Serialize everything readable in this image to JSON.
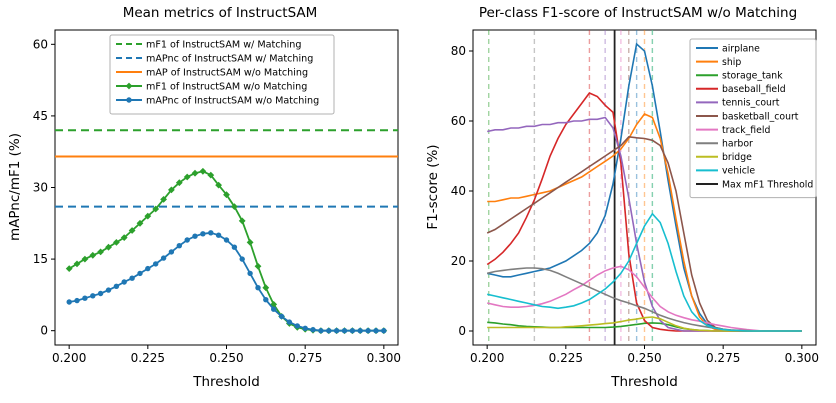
{
  "figure": {
    "background": "#ffffff"
  },
  "chart_data": [
    {
      "type": "line",
      "title": "Mean metrics of InstructSAM",
      "xlabel": "Threshold",
      "ylabel": "mAPnc/mF1 (%)",
      "xlim": [
        0.1955,
        0.3045
      ],
      "ylim": [
        -3,
        63
      ],
      "xticks": [
        0.2,
        0.225,
        0.25,
        0.275,
        0.3
      ],
      "xtick_labels": [
        "0.200",
        "0.225",
        "0.250",
        "0.275",
        "0.300"
      ],
      "yticks": [
        0,
        15,
        30,
        45,
        60
      ],
      "grid": false,
      "legend_position": "upper center",
      "hlines": [
        {
          "label": "mF1 of InstructSAM w/ Matching",
          "y": 42.0,
          "color": "#2ca02c",
          "dash": true
        },
        {
          "label": "mAPnc of InstructSAM w/ Matching",
          "y": 26.0,
          "color": "#1f77b4",
          "dash": true
        },
        {
          "label": "mAP of InstructSAM w/o Matching",
          "y": 36.5,
          "color": "#ff7f0e",
          "dash": false
        }
      ],
      "x": [
        0.2,
        0.2025,
        0.205,
        0.2075,
        0.21,
        0.2125,
        0.215,
        0.2175,
        0.22,
        0.2225,
        0.225,
        0.2275,
        0.23,
        0.2325,
        0.235,
        0.2375,
        0.24,
        0.2425,
        0.245,
        0.2475,
        0.25,
        0.2525,
        0.255,
        0.2575,
        0.26,
        0.2625,
        0.265,
        0.2675,
        0.27,
        0.2725,
        0.275,
        0.2775,
        0.28,
        0.2825,
        0.285,
        0.2875,
        0.29,
        0.2925,
        0.295,
        0.2975,
        0.3
      ],
      "series": [
        {
          "name": "mF1 of InstructSAM w/o Matching",
          "color": "#2ca02c",
          "marker": "diamond",
          "values": [
            13,
            14,
            15,
            15.8,
            16.5,
            17.5,
            18.5,
            19.5,
            21,
            22.5,
            24,
            25.5,
            27.5,
            29.5,
            31,
            32.2,
            33,
            33.4,
            32.6,
            30.5,
            28.5,
            26,
            23,
            18.5,
            13.5,
            9,
            5.5,
            3,
            1.5,
            0.7,
            0.3,
            0.1,
            0,
            0,
            0,
            0,
            0,
            0,
            0,
            0,
            0
          ]
        },
        {
          "name": "mAPnc of InstructSAM w/o Matching",
          "color": "#1f77b4",
          "marker": "circle",
          "values": [
            6,
            6.3,
            6.8,
            7.3,
            7.8,
            8.5,
            9.3,
            10.2,
            11,
            12,
            13,
            14,
            15.2,
            16.5,
            17.8,
            19,
            19.8,
            20.3,
            20.5,
            20,
            19,
            17.5,
            15,
            12,
            9,
            6.5,
            4.5,
            3,
            1.8,
            1,
            0.5,
            0.2,
            0,
            0,
            0,
            0,
            0,
            0,
            0,
            0,
            0
          ]
        }
      ]
    },
    {
      "type": "line",
      "title": "Per-class F1-score of InstructSAM w/o Matching",
      "xlabel": "Threshold",
      "ylabel": "F1-score (%)",
      "xlim": [
        0.1955,
        0.3045
      ],
      "ylim": [
        -4,
        86
      ],
      "xticks": [
        0.2,
        0.225,
        0.25,
        0.275,
        0.3
      ],
      "xtick_labels": [
        "0.200",
        "0.225",
        "0.250",
        "0.275",
        "0.300"
      ],
      "yticks": [
        0,
        20,
        40,
        60,
        80
      ],
      "grid": false,
      "legend_position": "upper right",
      "vlines": [
        {
          "label": "Max mF1 Threshold",
          "x": 0.2405,
          "color": "#222222"
        }
      ],
      "x": [
        0.2,
        0.2025,
        0.205,
        0.2075,
        0.21,
        0.2125,
        0.215,
        0.2175,
        0.22,
        0.2225,
        0.225,
        0.2275,
        0.23,
        0.2325,
        0.235,
        0.2375,
        0.24,
        0.2425,
        0.245,
        0.2475,
        0.25,
        0.2525,
        0.255,
        0.2575,
        0.26,
        0.2625,
        0.265,
        0.2675,
        0.27,
        0.2725,
        0.275,
        0.2775,
        0.28,
        0.2825,
        0.285,
        0.2875,
        0.29,
        0.2925,
        0.295,
        0.2975,
        0.3
      ],
      "series": [
        {
          "name": "airplane",
          "color": "#1f77b4",
          "best_threshold": 0.2475,
          "values": [
            16.5,
            16,
            15.5,
            15.5,
            16,
            16.5,
            17,
            17.5,
            18,
            19,
            20,
            21.5,
            23,
            25,
            28,
            33,
            42,
            55,
            70,
            82,
            80,
            70,
            57,
            43,
            30,
            18,
            10,
            5,
            2,
            1,
            0.5,
            0.2,
            0,
            0,
            0,
            0,
            0,
            0,
            0,
            0,
            0
          ]
        },
        {
          "name": "ship",
          "color": "#ff7f0e",
          "best_threshold": 0.25,
          "values": [
            37,
            37,
            37.5,
            38,
            38,
            38.5,
            39,
            39.5,
            40,
            41,
            42,
            43,
            44,
            45.5,
            47,
            48.5,
            50,
            52,
            55,
            59,
            62,
            61,
            55,
            45,
            32,
            20,
            10,
            4,
            1.5,
            0.5,
            0,
            0,
            0,
            0,
            0,
            0,
            0,
            0,
            0,
            0,
            0
          ]
        },
        {
          "name": "storage_tank",
          "color": "#2ca02c",
          "best_threshold": 0.2005,
          "values": [
            2.5,
            2.3,
            2,
            1.8,
            1.5,
            1.3,
            1.2,
            1.1,
            1,
            1,
            1,
            1,
            1,
            1,
            1,
            1,
            1.1,
            1.3,
            1.6,
            1.9,
            2.2,
            2.3,
            2.2,
            1.8,
            1.2,
            0.7,
            0.4,
            0.2,
            0.1,
            0,
            0,
            0,
            0,
            0,
            0,
            0,
            0,
            0,
            0,
            0,
            0
          ]
        },
        {
          "name": "baseball_field",
          "color": "#d62728",
          "best_threshold": 0.2325,
          "values": [
            19,
            20.5,
            22.5,
            25,
            28,
            32.5,
            37.5,
            43.5,
            50,
            55,
            59,
            62,
            65,
            68,
            67,
            64.5,
            62.5,
            48,
            22,
            8,
            3,
            1,
            0.5,
            0.2,
            0,
            0,
            0,
            0,
            0,
            0,
            0,
            0,
            0,
            0,
            0,
            0,
            0,
            0,
            0,
            0,
            0
          ]
        },
        {
          "name": "tennis_court",
          "color": "#9467bd",
          "best_threshold": 0.2375,
          "values": [
            57,
            57.5,
            57.5,
            58,
            58,
            58.5,
            58.5,
            59,
            59,
            59.5,
            59.5,
            60,
            60,
            60.5,
            60.5,
            61,
            58,
            50,
            38,
            25,
            14,
            7,
            3,
            1,
            0.5,
            0,
            0,
            0,
            0,
            0,
            0,
            0,
            0,
            0,
            0,
            0,
            0,
            0,
            0,
            0,
            0
          ]
        },
        {
          "name": "basketball_court",
          "color": "#8c564b",
          "best_threshold": 0.245,
          "values": [
            28,
            29,
            30.5,
            32,
            33.5,
            35,
            36.5,
            38,
            39.5,
            41,
            42.5,
            44,
            45.5,
            47,
            48.5,
            50,
            51.5,
            53,
            55.5,
            55.2,
            55,
            54.5,
            53,
            48,
            40,
            28,
            16,
            8,
            3,
            1,
            0.5,
            0,
            0,
            0,
            0,
            0,
            0,
            0,
            0,
            0,
            0
          ]
        },
        {
          "name": "track_field",
          "color": "#e377c2",
          "best_threshold": 0.2425,
          "values": [
            8,
            7.5,
            7,
            6.8,
            6.8,
            7,
            7.3,
            7.8,
            8.5,
            9.5,
            10.5,
            11.8,
            13,
            14.5,
            16,
            17.2,
            18,
            18.5,
            17.5,
            15.5,
            12.5,
            9.5,
            7,
            5.5,
            4.5,
            3.8,
            3.2,
            2.8,
            2.3,
            1.8,
            1.4,
            1,
            0.7,
            0.4,
            0.2,
            0,
            0,
            0,
            0,
            0,
            0
          ]
        },
        {
          "name": "harbor",
          "color": "#7f7f7f",
          "best_threshold": 0.215,
          "values": [
            16.5,
            17,
            17.3,
            17.6,
            17.8,
            18,
            18,
            17.8,
            17.3,
            16.5,
            15.5,
            14.5,
            13.5,
            12.5,
            11.5,
            10.5,
            9.5,
            8.7,
            8,
            7.2,
            6.5,
            5.5,
            4.5,
            3.7,
            3,
            2.4,
            1.9,
            1.5,
            1.1,
            0.8,
            0.5,
            0.3,
            0.2,
            0.1,
            0,
            0,
            0,
            0,
            0,
            0,
            0
          ]
        },
        {
          "name": "bridge",
          "color": "#bcbd22",
          "best_threshold": 0.2525,
          "values": [
            1,
            1,
            1,
            1,
            1,
            1,
            1,
            1,
            1,
            1,
            1.2,
            1.3,
            1.5,
            1.7,
            1.9,
            2.1,
            2.3,
            2.7,
            3.1,
            3.4,
            3.8,
            4,
            3.5,
            2.5,
            1.5,
            0.8,
            0.4,
            0.2,
            0.1,
            0,
            0,
            0,
            0,
            0,
            0,
            0,
            0,
            0,
            0,
            0,
            0
          ]
        },
        {
          "name": "vehicle",
          "color": "#17becf",
          "best_threshold": 0.2525,
          "values": [
            10.5,
            10,
            9.5,
            9,
            8.5,
            8,
            7.5,
            7,
            6.8,
            6.5,
            6.8,
            7.2,
            8,
            9,
            10.5,
            12,
            14,
            16.5,
            20,
            25,
            30,
            33.5,
            31,
            25,
            17,
            10,
            5.5,
            3,
            1.5,
            0.8,
            0.4,
            0.2,
            0.1,
            0,
            0,
            0,
            0,
            0,
            0,
            0,
            0
          ]
        }
      ]
    }
  ]
}
